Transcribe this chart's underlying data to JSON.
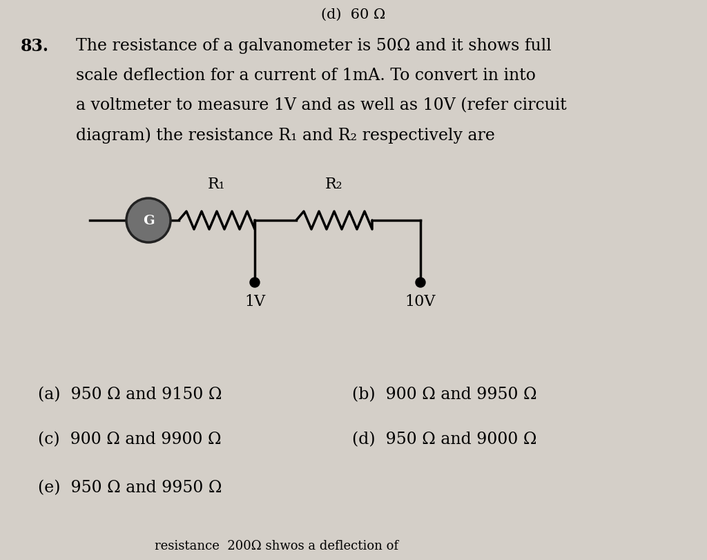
{
  "bg_color": "#d4cfc8",
  "top_text": "(d)  60 Ω",
  "problem_num": "83.",
  "problem_lines": [
    "The resistance of a galvanometer is 50Ω and it shows full",
    "scale deflection for a current of 1mA. To convert in into",
    "a voltmeter to measure 1V and as well as 10V (refer circuit",
    "diagram) the resistance R₁ and R₂ respectively are"
  ],
  "circuit": {
    "G_label": "G",
    "R1_label": "R₁",
    "R2_label": "R₂",
    "label_1V": "1V",
    "label_10V": "10V",
    "G_color": "#707070",
    "G_edge_color": "#222222"
  },
  "options": [
    [
      "(a)  950 Ω and 9150 Ω",
      "(b)  900 Ω and 9950 Ω"
    ],
    [
      "(c)  900 Ω and 9900 Ω",
      "(d)  950 Ω and 9000 Ω"
    ],
    [
      "(e)  950 Ω and 9950 Ω",
      ""
    ]
  ],
  "bottom_text": "resistance  200Ω shwos a deflection of",
  "font_problem": 17,
  "font_options": 17,
  "font_circuit": 15
}
